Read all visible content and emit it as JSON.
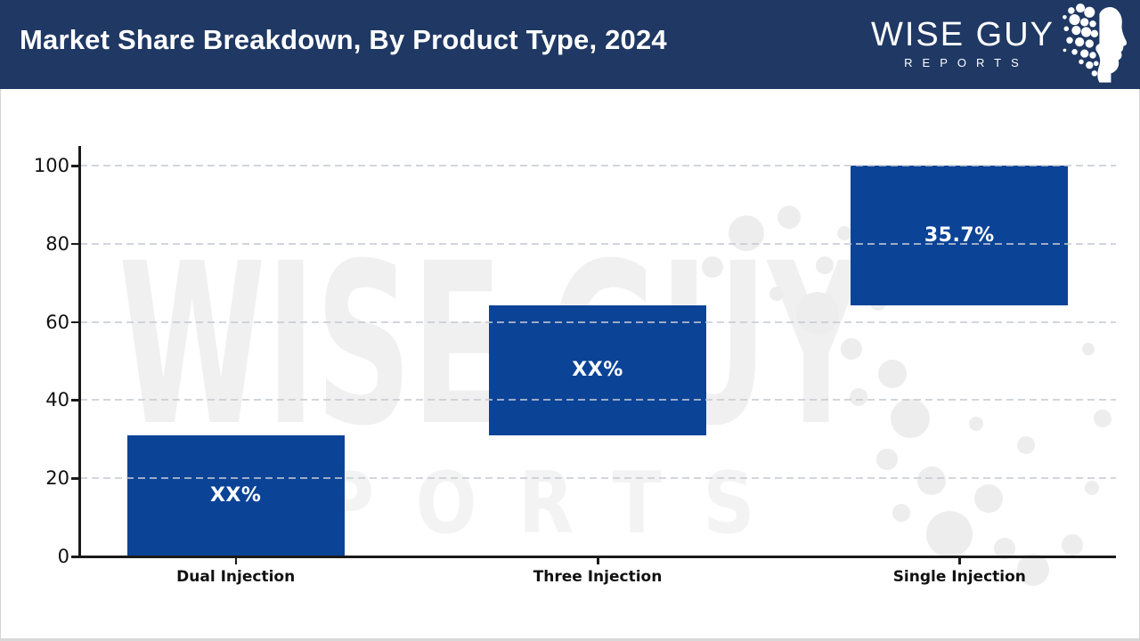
{
  "header": {
    "title": "Market Share Breakdown, By Product Type, 2024",
    "bg_color": "#1f3864",
    "logo": {
      "primary": "WISE GUY",
      "secondary": "REPORTS"
    }
  },
  "watermark": {
    "primary": "WISE GUY",
    "secondary": "REPORTS"
  },
  "chart_data": {
    "type": "bar",
    "variant": "floating stacked percentage segments (waterfall-style market share)",
    "title": "Market Share Breakdown, By Product Type, 2024",
    "categories": [
      "Dual Injection",
      "Three Injection",
      "Single Injection"
    ],
    "bars": [
      {
        "category": "Dual Injection",
        "start": 0,
        "end": 31.0,
        "value_label": "XX%"
      },
      {
        "category": "Three Injection",
        "start": 31.0,
        "end": 64.3,
        "value_label": "XX%"
      },
      {
        "category": "Single Injection",
        "start": 64.3,
        "end": 100.0,
        "value_label": "35.7%"
      }
    ],
    "xlabel": "",
    "ylabel": "",
    "yticks": [
      0,
      20,
      40,
      60,
      80,
      100
    ],
    "ylim": [
      0,
      105
    ],
    "grid": "horizontal-dashed",
    "legend": "none",
    "bar_color": "#0b4397",
    "bar_label_color": "#ffffff",
    "axis_color": "#1a1a1a",
    "gridline_color": "#dcdcdc"
  }
}
